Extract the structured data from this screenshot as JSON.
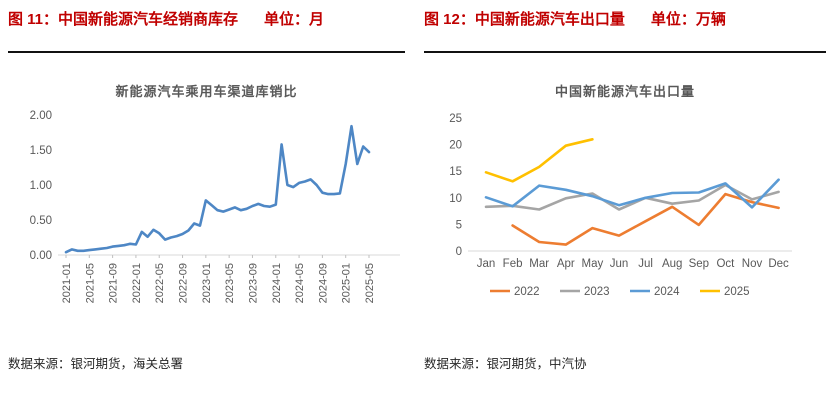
{
  "page": {
    "left_panel": {
      "heading": "图 11：中国新能源汽车经销商库存",
      "unit": "单位：月",
      "source": "数据来源：银河期货，海关总署"
    },
    "right_panel": {
      "heading": "图 12：中国新能源汽车出口量",
      "unit": "单位：万辆",
      "source": "数据来源：银河期货，中汽协"
    }
  },
  "colors": {
    "heading_red": "#C00000",
    "axis_line": "#D9D9D9",
    "tick_mark": "#BFBFBF",
    "label_gray": "#595959",
    "divider_black": "#111111"
  },
  "chart_data": [
    {
      "type": "line",
      "title": "新能源汽车乘用车渠道库销比",
      "line_color": "#4E87C5",
      "ylim": [
        0,
        2
      ],
      "ytick_labels": [
        "0.00",
        "0.50",
        "1.00",
        "1.50",
        "2.00"
      ],
      "x_tick_labels": [
        "2021-01",
        "2021-05",
        "2021-09",
        "2022-01",
        "2022-05",
        "2022-09",
        "2023-01",
        "2023-05",
        "2023-09",
        "2024-01",
        "2024-05",
        "2024-09",
        "2025-01",
        "2025-05"
      ],
      "x_tick_interval": 4,
      "x_range": [
        "2021-01",
        "2025-05"
      ],
      "values": [
        0.04,
        0.08,
        0.06,
        0.06,
        0.07,
        0.08,
        0.09,
        0.1,
        0.12,
        0.13,
        0.14,
        0.16,
        0.15,
        0.33,
        0.26,
        0.36,
        0.31,
        0.22,
        0.25,
        0.27,
        0.3,
        0.35,
        0.45,
        0.42,
        0.78,
        0.71,
        0.64,
        0.62,
        0.65,
        0.68,
        0.64,
        0.66,
        0.7,
        0.73,
        0.7,
        0.69,
        0.72,
        1.58,
        1.0,
        0.97,
        1.03,
        1.05,
        1.08,
        1.0,
        0.89,
        0.87,
        0.87,
        0.88,
        1.3,
        1.84,
        1.3,
        1.55,
        1.47
      ],
      "grid": false,
      "legend": "none"
    },
    {
      "type": "line",
      "title": "中国新能源汽车出口量",
      "ylim": [
        0,
        25
      ],
      "ytick_labels": [
        "0",
        "5",
        "10",
        "15",
        "20",
        "25"
      ],
      "categories": [
        "Jan",
        "Feb",
        "Mar",
        "Apr",
        "May",
        "Jun",
        "Jul",
        "Aug",
        "Sep",
        "Oct",
        "Nov",
        "Dec"
      ],
      "series": [
        {
          "name": "2022",
          "color": "#ED7D31",
          "values": [
            null,
            4.8,
            1.7,
            1.2,
            4.3,
            2.9,
            5.6,
            8.3,
            4.9,
            10.7,
            9.2,
            8.1
          ]
        },
        {
          "name": "2023",
          "color": "#A5A5A5",
          "values": [
            8.3,
            8.5,
            7.8,
            9.9,
            10.8,
            7.8,
            10.0,
            8.9,
            9.5,
            12.4,
            9.7,
            11.1
          ]
        },
        {
          "name": "2024",
          "color": "#5B9BD5",
          "values": [
            10.1,
            8.4,
            12.3,
            11.5,
            10.3,
            8.6,
            10.0,
            10.9,
            11.0,
            12.7,
            8.2,
            13.4
          ]
        },
        {
          "name": "2025",
          "color": "#FFC000",
          "values": [
            14.8,
            13.1,
            15.8,
            19.8,
            21.0,
            null,
            null,
            null,
            null,
            null,
            null,
            null
          ]
        }
      ],
      "grid": false,
      "legend": "bottom"
    }
  ]
}
